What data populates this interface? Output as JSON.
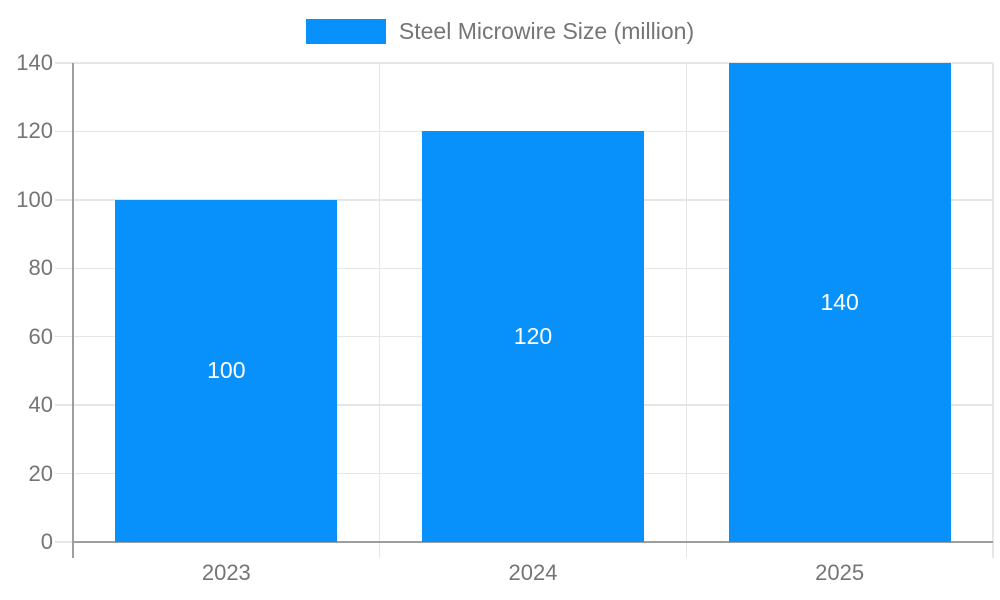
{
  "chart_data": {
    "type": "bar",
    "title": "Steel Microwire Size (million)",
    "categories": [
      "2023",
      "2024",
      "2025"
    ],
    "series": [
      {
        "name": "Steel Microwire Size (million)",
        "values": [
          100,
          120,
          140
        ]
      }
    ],
    "bar_value_labels": [
      "100",
      "120",
      "140"
    ],
    "y_ticks": [
      0,
      20,
      40,
      60,
      80,
      100,
      120,
      140
    ],
    "ylim": [
      0,
      140
    ],
    "grid": true,
    "legend_position": "top",
    "colors": {
      "bar": "#0991fb",
      "grid": "#e6e6e6",
      "axis": "#9e9e9e",
      "tick_label": "#757575",
      "bar_label": "#ffffff",
      "background": "#ffffff"
    }
  }
}
